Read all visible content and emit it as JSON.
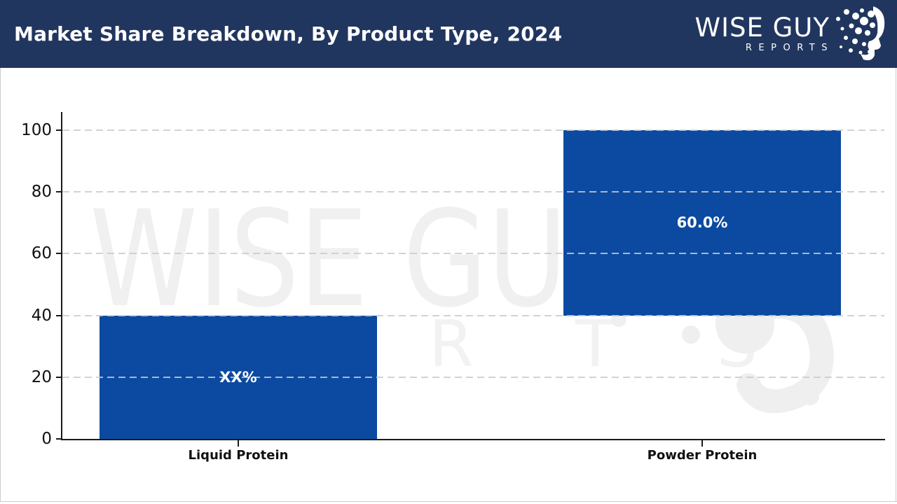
{
  "header": {
    "title": "Market Share Breakdown, By Product Type, 2024",
    "bg_color": "#21365f",
    "logo": {
      "line1": "WISE GUY",
      "line2": "REPORTS"
    }
  },
  "watermark": {
    "line1": "WISE GUY",
    "line2": "R T S"
  },
  "chart_data": {
    "type": "bar",
    "title": "Market Share Breakdown, By Product Type, 2024",
    "categories": [
      "Liquid Protein",
      "Powder Protein"
    ],
    "bars": [
      {
        "category": "Liquid Protein",
        "start": 0,
        "end": 40,
        "label": "XX%"
      },
      {
        "category": "Powder Protein",
        "start": 40,
        "end": 100,
        "label": "60.0%"
      }
    ],
    "xlabel": "",
    "ylabel": "",
    "ylim": [
      0,
      105
    ],
    "yticks": [
      0,
      20,
      40,
      60,
      80,
      100
    ],
    "grid": "horizontal-dashed",
    "legend": null,
    "bar_color": "#0b4aa0",
    "axis_color": "#1a1a1a",
    "gridline_color": "#c5cbd5"
  }
}
